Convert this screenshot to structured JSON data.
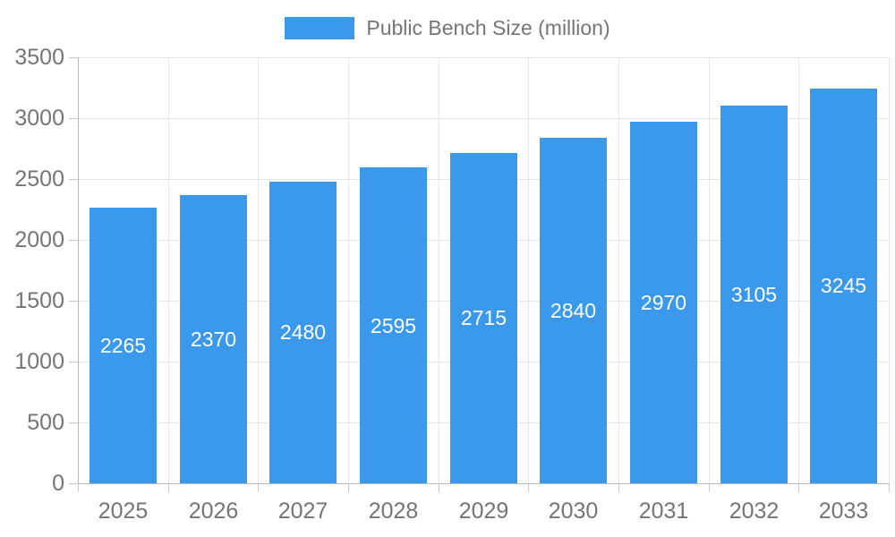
{
  "legend": {
    "label": "Public Bench Size (million)"
  },
  "chart_data": {
    "type": "bar",
    "title": "Public Bench Size (million)",
    "categories": [
      "2025",
      "2026",
      "2027",
      "2028",
      "2029",
      "2030",
      "2031",
      "2032",
      "2033"
    ],
    "series": [
      {
        "name": "Public Bench Size (million)",
        "values": [
          2265,
          2370,
          2480,
          2595,
          2715,
          2840,
          2970,
          3105,
          3245
        ]
      }
    ],
    "value_labels_shown": true,
    "xlabel": "",
    "ylabel": "",
    "ylim": [
      0,
      3500
    ],
    "ytick_step": 500,
    "yticks": [
      0,
      500,
      1000,
      1500,
      2000,
      2500,
      3000,
      3500
    ],
    "grid": true,
    "legend_position": "top",
    "colors": {
      "bar": "#3b99ec",
      "grid_line": "#e6e6e6",
      "axis_line": "#b8b8b8",
      "tick_mark": "#c9c9c9",
      "tick_text": "#757575",
      "value_label_text": "#ffffff",
      "background": "#ffffff"
    }
  }
}
